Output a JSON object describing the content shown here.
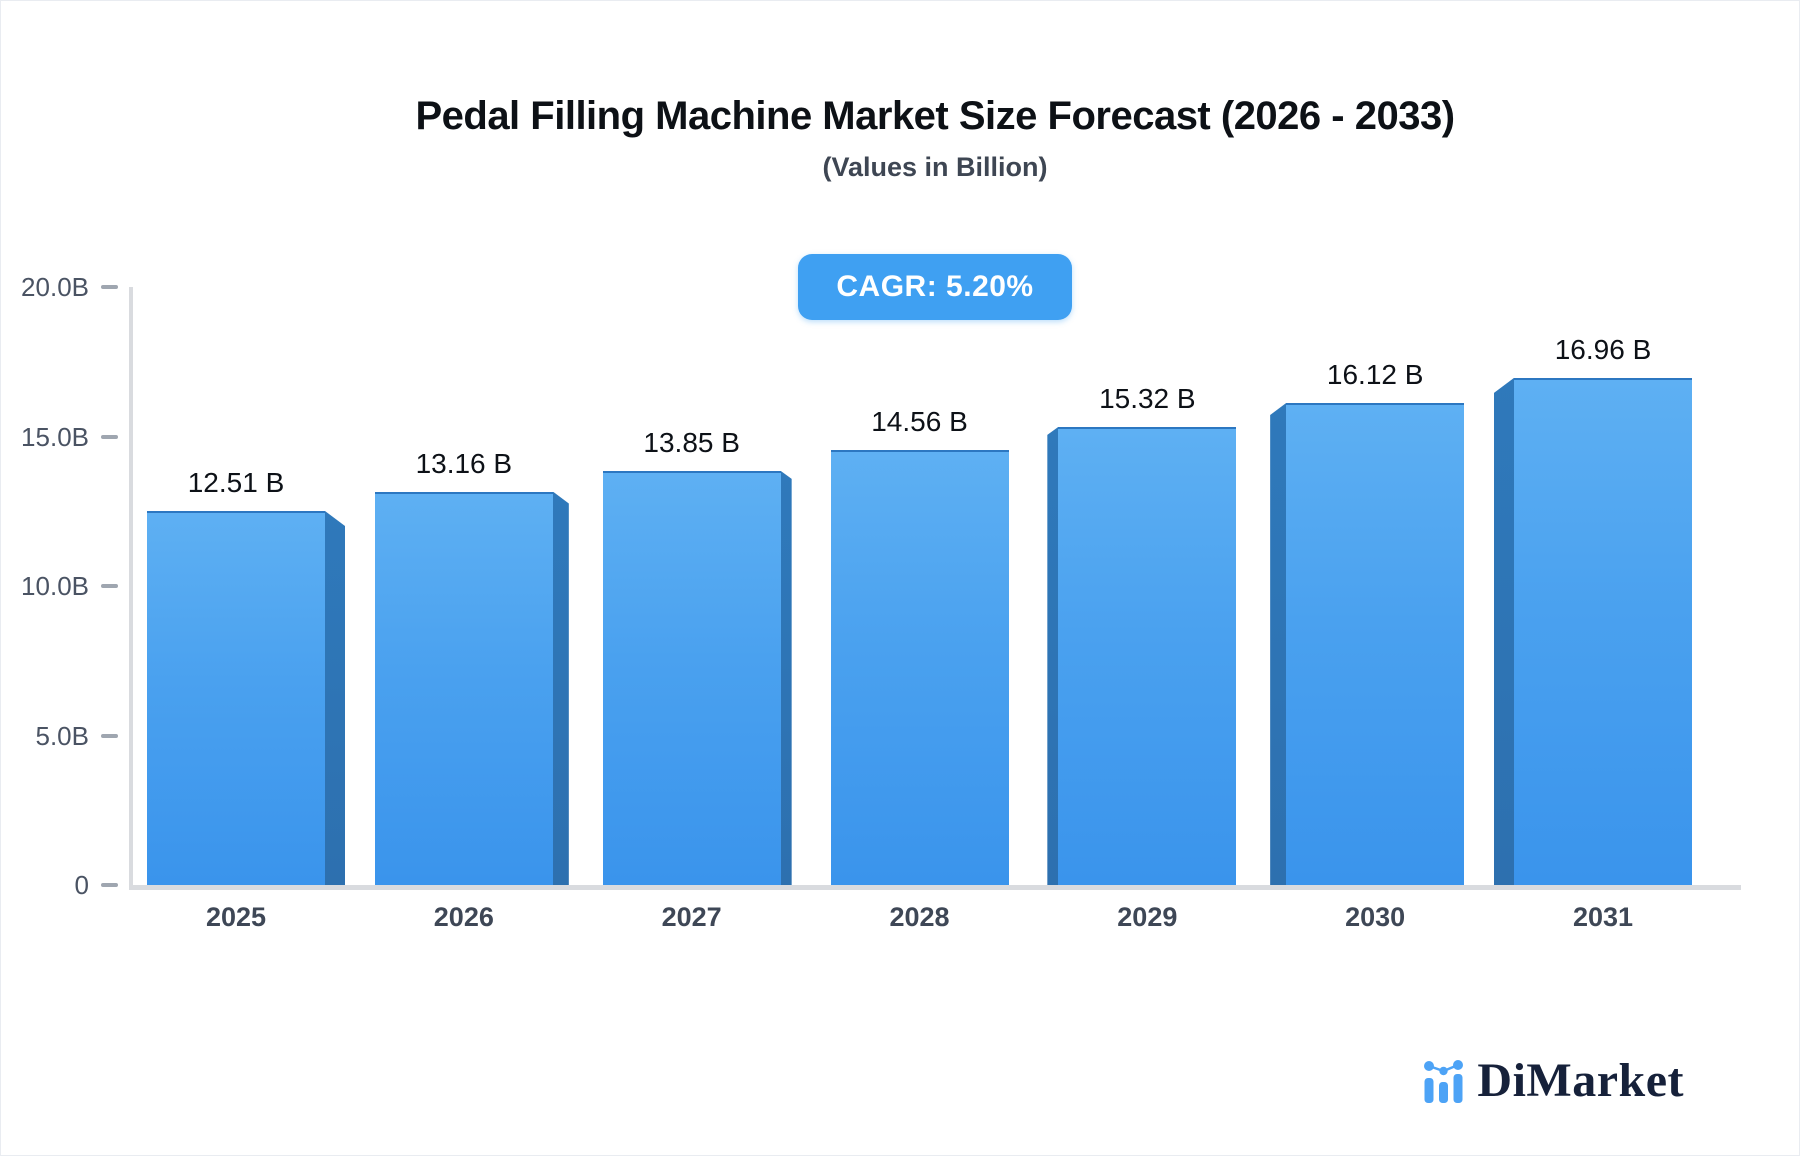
{
  "chart_data": {
    "type": "bar",
    "title": "Pedal Filling Machine Market Size Forecast (2026 - 2033)",
    "subtitle": "(Values in Billion)",
    "cagr_badge": "CAGR: 5.20%",
    "categories": [
      "2025",
      "2026",
      "2027",
      "2028",
      "2029",
      "2030",
      "2031"
    ],
    "values": [
      12.51,
      13.16,
      13.85,
      14.56,
      15.32,
      16.12,
      16.96
    ],
    "value_labels": [
      "12.51 B",
      "13.16 B",
      "13.85 B",
      "14.56 B",
      "15.32 B",
      "16.12 B",
      "16.96 B"
    ],
    "unit": "Billion",
    "ylim": [
      0,
      20
    ],
    "y_ticks": [
      {
        "label": "20.0B",
        "value": 20
      },
      {
        "label": "15.0B",
        "value": 15
      },
      {
        "label": "10.0B",
        "value": 10
      },
      {
        "label": "5.0B",
        "value": 5
      },
      {
        "label": "0",
        "value": 0
      }
    ],
    "grid": false,
    "legend": false,
    "perspective": "3d-center-vanishing-point",
    "colors": {
      "bar_face_top": "#5eb0f3",
      "bar_face_bottom": "#3a94ec",
      "bar_side_face": "#2e76b7",
      "badge_bg": "#3fa0f2",
      "badge_text": "#ffffff",
      "axis_line": "#d9dbdf",
      "tick_mark": "#9fa6b0",
      "axis_label": "#4a5363",
      "x_label": "#3e4756",
      "value_label": "#0d1117",
      "title": "#0d1116",
      "subtitle": "#3e4653"
    }
  },
  "watermark": {
    "text": "DiMarket",
    "icon": "dimarket-bar-chart-icon",
    "text_color": "#16213a",
    "icon_color": "#4da3f6"
  }
}
